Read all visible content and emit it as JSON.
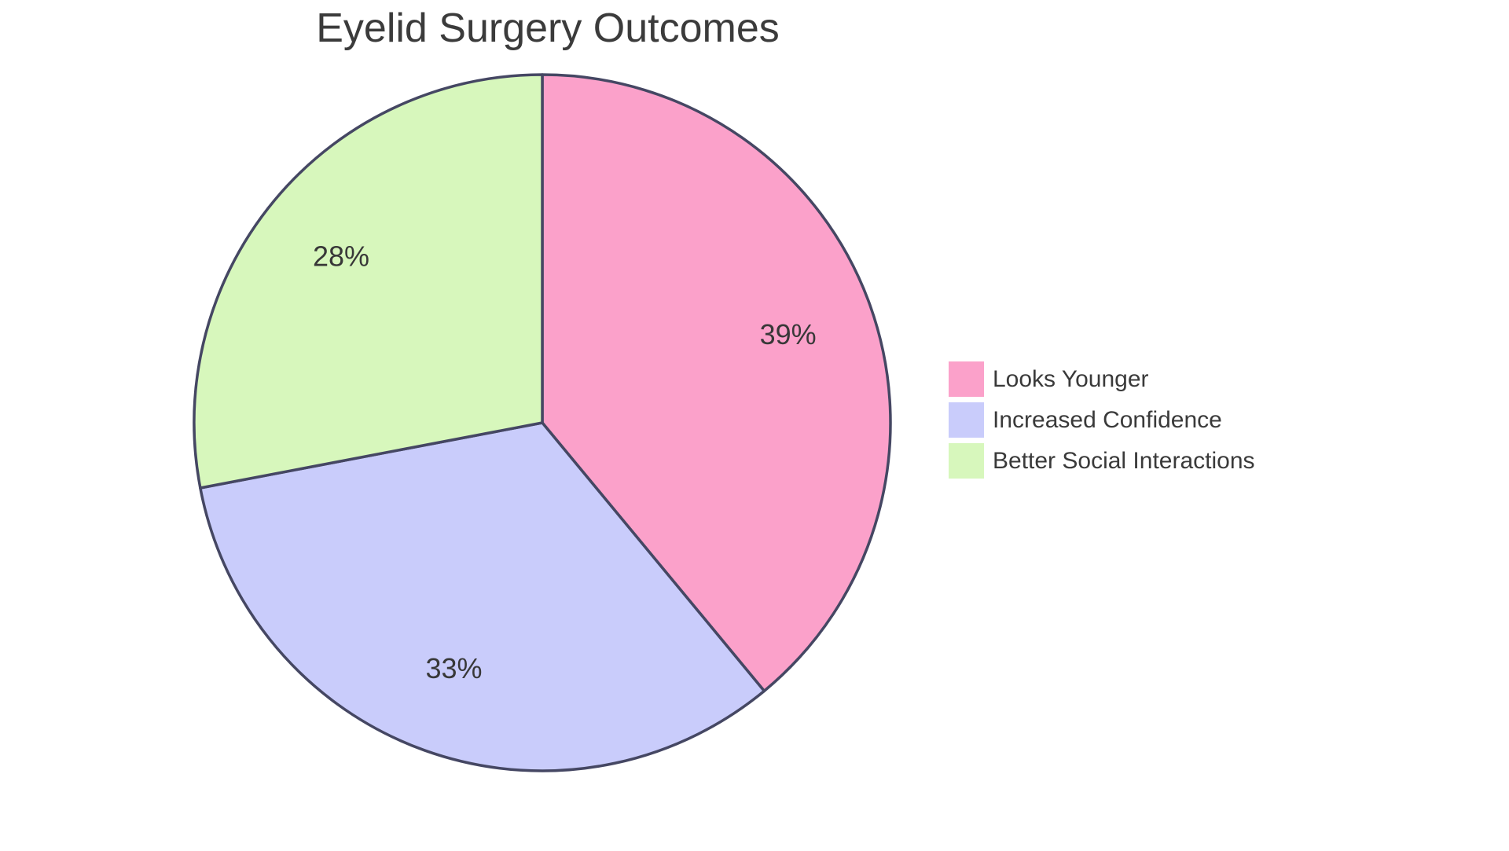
{
  "title": "Eyelid Surgery Outcomes",
  "colors": {
    "background": "#FFFFFF",
    "slice_stroke": "#454763",
    "title_text": "#3B3B3B",
    "slice_label_text": "#383838",
    "legend_text": "#3A3A3A"
  },
  "chart_data": {
    "type": "pie",
    "title": "Eyelid Surgery Outcomes",
    "categories": [
      "Looks Younger",
      "Increased Confidence",
      "Better Social Interactions"
    ],
    "values": [
      39,
      33,
      28
    ],
    "unit": "%",
    "slice_labels": [
      "39%",
      "33%",
      "28%"
    ],
    "slice_colors": [
      "#FBA1CA",
      "#C9CCFB",
      "#D7F7BC"
    ],
    "start_angle_deg": 0,
    "direction": "clockwise",
    "labels_inside": true,
    "legend_position": "right",
    "grid": false
  },
  "legend": {
    "items": [
      {
        "label": "Looks Younger",
        "color": "#FBA1CA"
      },
      {
        "label": "Increased Confidence",
        "color": "#C9CCFB"
      },
      {
        "label": "Better Social Interactions",
        "color": "#D7F7BC"
      }
    ]
  }
}
